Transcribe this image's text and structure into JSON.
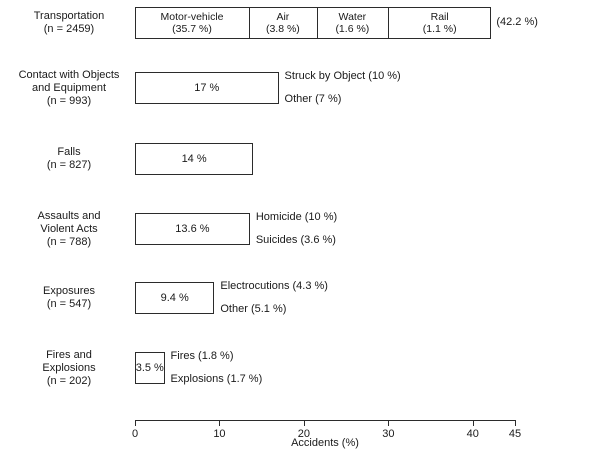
{
  "chart_data": {
    "type": "bar",
    "orientation": "horizontal",
    "title": "",
    "xlabel": "Accidents (%)",
    "ylabel": "",
    "xlim": [
      0,
      45
    ],
    "xticks": [
      0,
      10,
      20,
      30,
      40,
      45
    ],
    "grid": false,
    "legend": false,
    "colors": {
      "bar_fill": "#ffffff",
      "bar_border": "#2b2b2b",
      "text": "#1a1a1a"
    },
    "categories": [
      {
        "label_lines": [
          "Transportation",
          "(n = 2459)"
        ],
        "value": 42.2,
        "outside_label": "(42.2 %)",
        "segments": [
          {
            "name": "Motor-vehicle",
            "label": "(35.7 %)",
            "value": 35.7
          },
          {
            "name": "Air",
            "label": "(3.8 %)",
            "value": 3.8
          },
          {
            "name": "Water",
            "label": "(1.6 %)",
            "value": 1.6
          },
          {
            "name": "Rail",
            "label": "(1.1 %)",
            "value": 1.1
          }
        ]
      },
      {
        "label_lines": [
          "Contact with Objects",
          "and Equipment",
          "(n = 993)"
        ],
        "value": 17,
        "bar_label": "17 %",
        "annotations": [
          {
            "position": "top",
            "text": "Struck by Object (10 %)"
          },
          {
            "position": "bottom",
            "text": "Other (7 %)"
          }
        ]
      },
      {
        "label_lines": [
          "Falls",
          "(n = 827)"
        ],
        "value": 14,
        "bar_label": "14 %"
      },
      {
        "label_lines": [
          "Assaults and",
          "Violent Acts",
          "(n = 788)"
        ],
        "value": 13.6,
        "bar_label": "13.6 %",
        "annotations": [
          {
            "position": "top",
            "text": "Homicide (10 %)"
          },
          {
            "position": "bottom",
            "text": "Suicides (3.6 %)"
          }
        ]
      },
      {
        "label_lines": [
          "Exposures",
          "(n = 547)"
        ],
        "value": 9.4,
        "bar_label": "9.4 %",
        "annotations": [
          {
            "position": "top",
            "text": "Electrocutions (4.3 %)"
          },
          {
            "position": "bottom",
            "text": "Other (5.1 %)"
          }
        ]
      },
      {
        "label_lines": [
          "Fires and",
          "Explosions",
          "(n = 202)"
        ],
        "value": 3.5,
        "bar_label": "3.5 %",
        "annotations": [
          {
            "position": "top",
            "text": "Fires (1.8 %)"
          },
          {
            "position": "bottom",
            "text": "Explosions (1.7 %)"
          }
        ]
      }
    ]
  }
}
